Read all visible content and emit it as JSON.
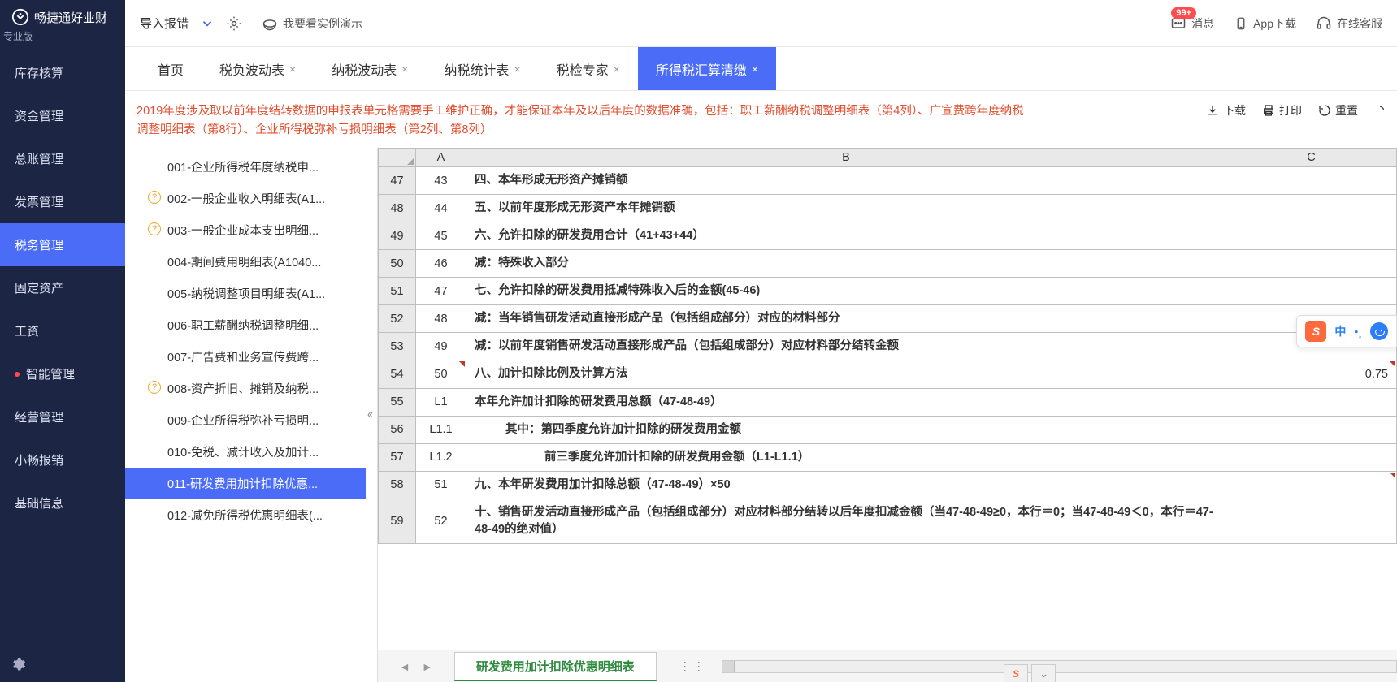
{
  "brand": {
    "name": "畅捷通好业财",
    "edition": "专业版"
  },
  "sidebar": {
    "items": [
      {
        "label": "库存核算"
      },
      {
        "label": "资金管理"
      },
      {
        "label": "总账管理"
      },
      {
        "label": "发票管理"
      },
      {
        "label": "税务管理",
        "active": true
      },
      {
        "label": "固定资产"
      },
      {
        "label": "工资"
      },
      {
        "label": "智能管理",
        "dot": true
      },
      {
        "label": "经营管理"
      },
      {
        "label": "小畅报销"
      },
      {
        "label": "基础信息"
      }
    ]
  },
  "topbar": {
    "search_label": "导入报错",
    "demo_label": "我要看实例演示",
    "msg_label": "消息",
    "msg_badge": "99+",
    "app_label": "App下载",
    "service_label": "在线客服"
  },
  "tabs": [
    {
      "label": "首页",
      "closable": false
    },
    {
      "label": "税负波动表",
      "closable": true
    },
    {
      "label": "纳税波动表",
      "closable": true
    },
    {
      "label": "纳税统计表",
      "closable": true
    },
    {
      "label": "税检专家",
      "closable": true
    },
    {
      "label": "所得税汇算清缴",
      "closable": true,
      "active": true
    }
  ],
  "warning": "2019年度涉及取以前年度结转数据的申报表单元格需要手工维护正确，才能保证本年及以后年度的数据准确，包括：职工薪酬纳税调整明细表（第4列）、广宣费跨年度纳税调整明细表（第8行）、企业所得税弥补亏损明细表（第2列、第8列）",
  "actions": {
    "download": "下载",
    "print": "打印",
    "reset": "重置"
  },
  "form_list": [
    {
      "label": "001-企业所得税年度纳税申..."
    },
    {
      "label": "002-一般企业收入明细表(A1...",
      "q": true
    },
    {
      "label": "003-一般企业成本支出明细...",
      "q": true
    },
    {
      "label": "004-期间费用明细表(A1040..."
    },
    {
      "label": "005-纳税调整项目明细表(A1..."
    },
    {
      "label": "006-职工薪酬纳税调整明细..."
    },
    {
      "label": "007-广告费和业务宣传费跨..."
    },
    {
      "label": "008-资产折旧、摊销及纳税...",
      "q": true
    },
    {
      "label": "009-企业所得税弥补亏损明..."
    },
    {
      "label": "010-免税、减计收入及加计..."
    },
    {
      "label": "011-研发费用加计扣除优惠...",
      "selected": true
    },
    {
      "label": "012-减免所得税优惠明细表(..."
    }
  ],
  "sheet": {
    "columns": [
      "A",
      "B",
      "C"
    ],
    "rows": [
      {
        "n": "47",
        "a": "43",
        "b": "四、本年形成无形资产摊销额",
        "c": ""
      },
      {
        "n": "48",
        "a": "44",
        "b": "五、以前年度形成无形资产本年摊销额",
        "c": ""
      },
      {
        "n": "49",
        "a": "45",
        "b": "六、允许扣除的研发费用合计（41+43+44）",
        "c": ""
      },
      {
        "n": "50",
        "a": "46",
        "b": "减：特殊收入部分",
        "c": ""
      },
      {
        "n": "51",
        "a": "47",
        "b": "七、允许扣除的研发费用抵减特殊收入后的金额(45-46)",
        "c": ""
      },
      {
        "n": "52",
        "a": "48",
        "b": "减：当年销售研发活动直接形成产品（包括组成部分）对应的材料部分",
        "c": ""
      },
      {
        "n": "53",
        "a": "49",
        "b": "减：以前年度销售研发活动直接形成产品（包括组成部分）对应材料部分结转金额",
        "c": ""
      },
      {
        "n": "54",
        "a": "50",
        "b": "八、加计扣除比例及计算方法",
        "c": "0.75",
        "tri_a": true,
        "tri_c": true
      },
      {
        "n": "55",
        "a": "L1",
        "b": "本年允许加计扣除的研发费用总额（47-48-49）",
        "c": ""
      },
      {
        "n": "56",
        "a": "L1.1",
        "b": "其中：第四季度允许加计扣除的研发费用金额",
        "indent": 1,
        "c": ""
      },
      {
        "n": "57",
        "a": "L1.2",
        "b": "前三季度允许加计扣除的研发费用金额（L1-L1.1）",
        "indent": 2,
        "c": ""
      },
      {
        "n": "58",
        "a": "51",
        "b": "九、本年研发费用加计扣除总额（47-48-49）×50",
        "c": "",
        "tri_c": true
      },
      {
        "n": "59",
        "a": "52",
        "b": "十、销售研发活动直接形成产品（包括组成部分）对应材料部分结转以后年度扣减金额（当47-48-49≥0，本行＝0；当47-48-49＜0，本行＝47-48-49的绝对值）",
        "c": ""
      }
    ],
    "tab_label": "研发费用加计扣除优惠明细表"
  },
  "float": {
    "zh": "中"
  },
  "colors": {
    "sidebar_bg": "#1d2545",
    "accent": "#4a6cf7",
    "warning_text": "#e34d2e",
    "sheet_tab_accent": "#2e8b3d",
    "badge_bg": "#ff4d4f"
  }
}
